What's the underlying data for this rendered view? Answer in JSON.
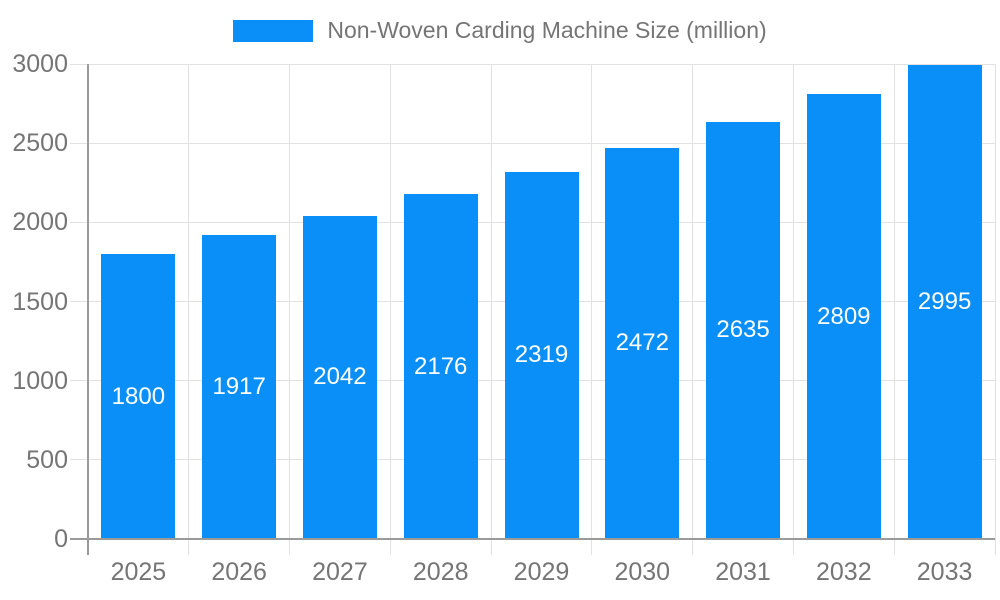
{
  "legend": {
    "items": [
      {
        "label": "Non-Woven Carding Machine Size (million)",
        "color": "#0a8ff8"
      }
    ]
  },
  "colors": {
    "bar": "#0a8ff8",
    "grid": "#e2e2e2",
    "axis": "#9a9a9a",
    "tick_label": "#757575",
    "value_label": "#ffffff",
    "background": "#ffffff"
  },
  "chart_data": {
    "type": "bar",
    "title": "",
    "series_name": "Non-Woven Carding Machine Size (million)",
    "categories": [
      "2025",
      "2026",
      "2027",
      "2028",
      "2029",
      "2030",
      "2031",
      "2032",
      "2033"
    ],
    "values": [
      1800,
      1917,
      2042,
      2176,
      2319,
      2472,
      2635,
      2809,
      2995
    ],
    "xlabel": "",
    "ylabel": "",
    "ylim": [
      0,
      3000
    ],
    "yticks": [
      0,
      500,
      1000,
      1500,
      2000,
      2500,
      3000
    ],
    "grid": true,
    "legend_position": "top-center",
    "value_label_position": "inside-center"
  }
}
